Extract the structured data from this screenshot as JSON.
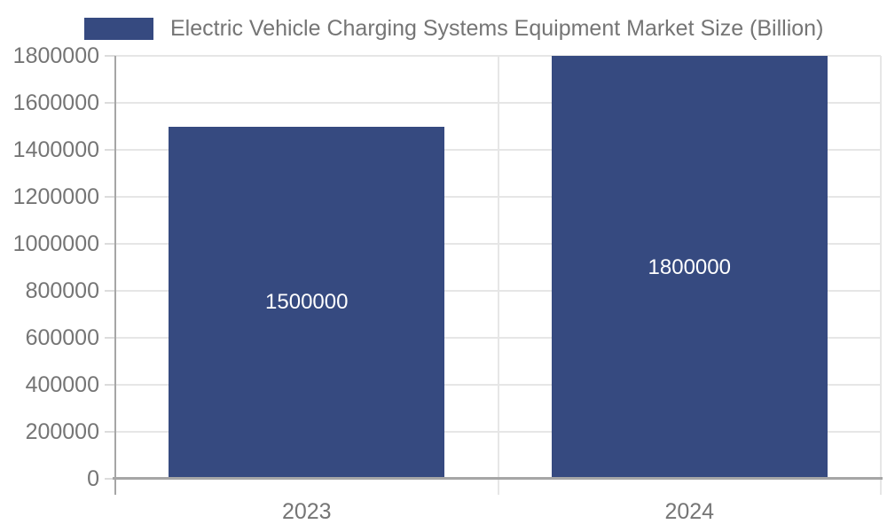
{
  "legend": {
    "label": "Electric Vehicle Charging Systems Equipment Market Size (Billion)"
  },
  "chart_data": {
    "type": "bar",
    "title": "Electric Vehicle Charging Systems Equipment Market Size (Billion)",
    "categories": [
      "2023",
      "2024"
    ],
    "series": [
      {
        "name": "Electric Vehicle Charging Systems Equipment Market Size (Billion)",
        "values": [
          1500000,
          1800000
        ]
      }
    ],
    "bar_labels": [
      "1500000",
      "1800000"
    ],
    "xlabel": "",
    "ylabel": "",
    "ylim": [
      0,
      1800000
    ],
    "yticks": [
      0,
      200000,
      400000,
      600000,
      800000,
      1000000,
      1200000,
      1400000,
      1600000,
      1800000
    ],
    "ytick_labels": [
      "0",
      "200000",
      "400000",
      "600000",
      "800000",
      "1000000",
      "1200000",
      "1400000",
      "1600000",
      "1800000"
    ],
    "grid": true,
    "legend_position": "top",
    "bar_width_fraction": 0.72
  },
  "colors": {
    "bar": "#364A80",
    "bar_label": "#FFFFFF",
    "grid": "#E6E6E6",
    "tick": "#DCDCDC",
    "axis": "#A6A6A6",
    "tick_label": "#757575",
    "background": "#FFFFFF"
  }
}
